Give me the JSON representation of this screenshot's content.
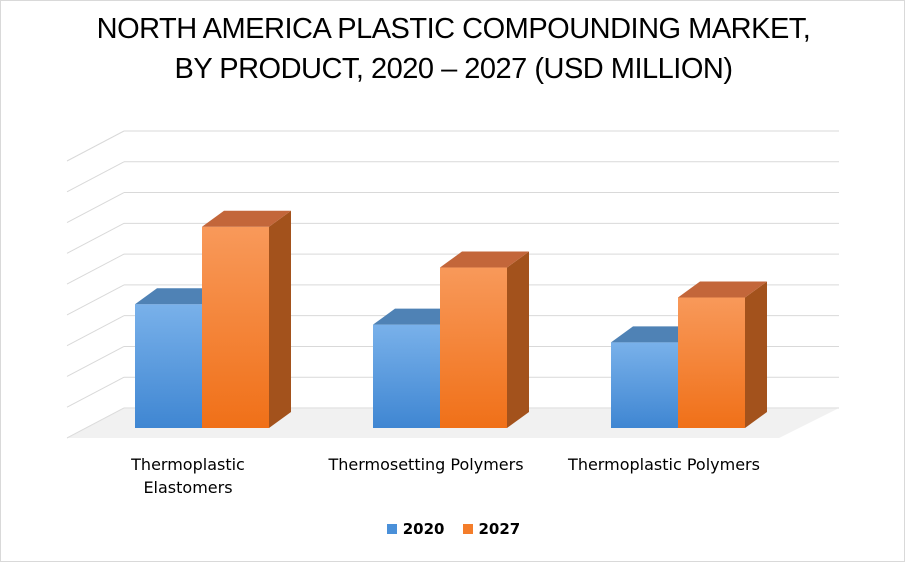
{
  "chart_data": {
    "type": "bar",
    "title_lines": [
      "NORTH AMERICA PLASTIC COMPOUNDING MARKET,",
      "BY PRODUCT, 2020 – 2027 (USD MILLION)"
    ],
    "categories": [
      "Thermoplastic Elastomers",
      "Thermosetting Polymers",
      "Thermoplastic Polymers"
    ],
    "category_label_lines": [
      [
        "Thermoplastic",
        "Elastomers"
      ],
      [
        "Thermosetting Polymers"
      ],
      [
        "Thermoplastic Polymers"
      ]
    ],
    "series": [
      {
        "name": "2020",
        "values": [
          4.55,
          3.8,
          3.15
        ],
        "color": "#4a90d9"
      },
      {
        "name": "2027",
        "values": [
          7.4,
          5.9,
          4.8
        ],
        "color": "#f47d2a"
      }
    ],
    "ylim": [
      0,
      9
    ],
    "grid": true,
    "three_d": true,
    "legend_position": "bottom"
  }
}
